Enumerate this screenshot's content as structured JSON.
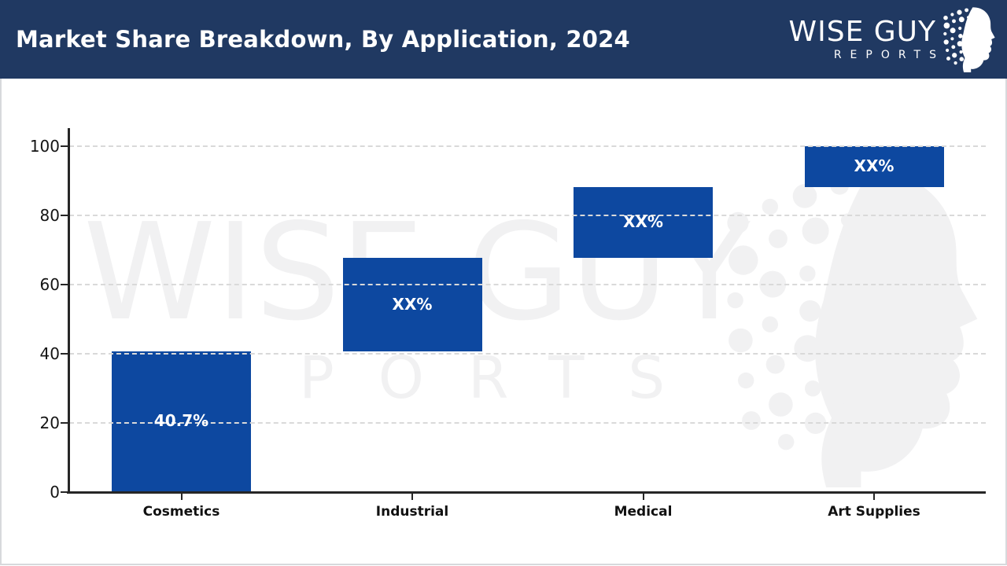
{
  "header": {
    "title": "Market Share Breakdown, By Application, 2024",
    "logo": {
      "name": "WISE GUY",
      "subname": "REPORTS"
    }
  },
  "watermark": {
    "line1": "WISE GUY",
    "line2": "REPORTS"
  },
  "chart_data": {
    "type": "bar",
    "subtype": "waterfall",
    "title": "Market Share Breakdown, By Application, 2024",
    "categories": [
      "Cosmetics",
      "Industrial",
      "Medical",
      "Art Supplies"
    ],
    "segments": [
      {
        "category": "Cosmetics",
        "start": 0,
        "end": 40.7,
        "label": "40.7%"
      },
      {
        "category": "Industrial",
        "start": 40.7,
        "end": 67.7,
        "label": "XX%"
      },
      {
        "category": "Medical",
        "start": 67.7,
        "end": 88.2,
        "label": "XX%"
      },
      {
        "category": "Art Supplies",
        "start": 88.2,
        "end": 100.0,
        "label": "XX%"
      }
    ],
    "ylim": [
      0,
      100
    ],
    "yticks": [
      0,
      20,
      40,
      60,
      80,
      100
    ],
    "xlabel": "",
    "ylabel": "",
    "grid": "horizontal-dashed",
    "legend_position": "none",
    "bar_color": "#0d48a0"
  },
  "colors": {
    "header_bg": "#203962",
    "bar": "#0d48a0",
    "axis": "#262626",
    "gridline": "#d9d9d9",
    "watermark": "#f1f1f2",
    "panel_border": "#d7d9dc",
    "title_text": "#ffffff"
  }
}
